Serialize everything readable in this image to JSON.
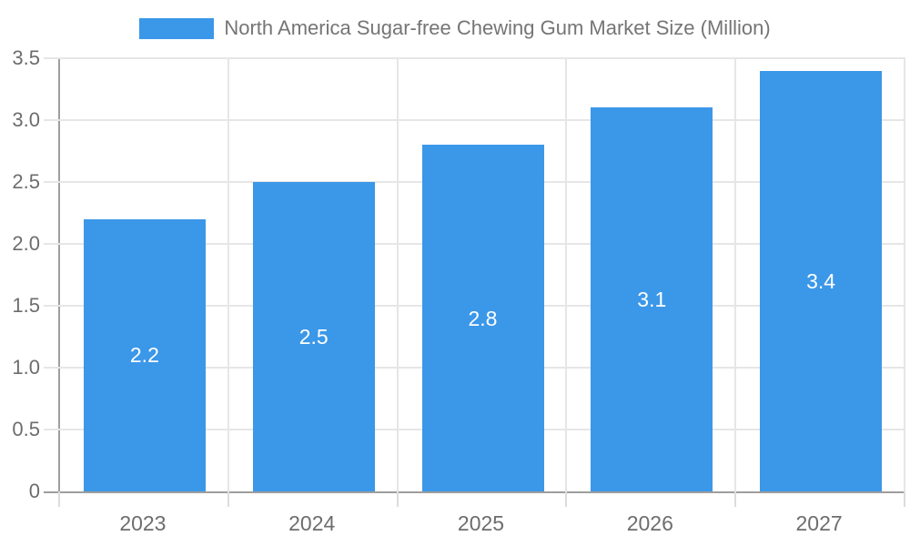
{
  "chart_data": {
    "type": "bar",
    "title": "North America Sugar-free Chewing Gum Market Size (Million)",
    "legend": {
      "label": "North America Sugar-free Chewing Gum Market Size (Million)",
      "position": "top"
    },
    "categories": [
      "2023",
      "2024",
      "2025",
      "2026",
      "2027"
    ],
    "values": [
      2.2,
      2.5,
      2.8,
      3.1,
      3.4
    ],
    "bar_labels": [
      "2.2",
      "2.5",
      "2.8",
      "3.1",
      "3.4"
    ],
    "xlabel": "",
    "ylabel": "",
    "ylim": [
      0,
      3.5
    ],
    "ytick_values": [
      0,
      0.5,
      1,
      1.5,
      2,
      2.5,
      3,
      3.5
    ],
    "ytick_labels": [
      "0",
      "0.5",
      "1.0",
      "1.5",
      "2.0",
      "2.5",
      "3.0",
      "3.5"
    ],
    "grid": true,
    "colors": {
      "bar": "#3b97e8",
      "bar_label_text": "#ffffff",
      "gridline": "#e6e6e6",
      "axis": "#9e9e9e",
      "below_axis_tick": "#dcdcdc",
      "tick_text": "#6d6d6d",
      "legend_text": "#757575"
    }
  }
}
